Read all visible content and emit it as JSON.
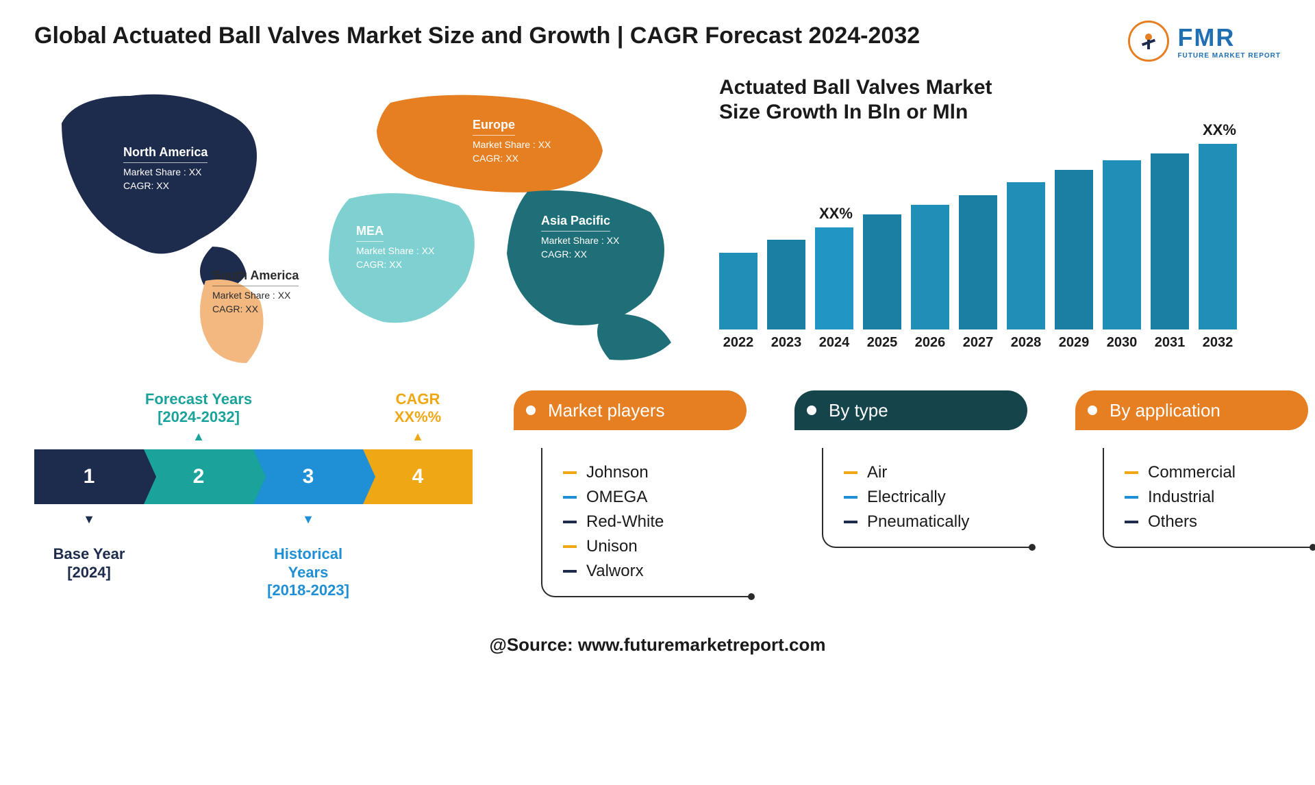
{
  "title": "Global Actuated Ball Valves Market Size and Growth | CAGR Forecast 2024-2032",
  "logo": {
    "fmr": "FMR",
    "sub": "FUTURE MARKET REPORT"
  },
  "map": {
    "regions": [
      {
        "key": "na",
        "name": "North America",
        "share": "Market Share : XX",
        "cagr": "CAGR: XX",
        "color": "#1d2b4c"
      },
      {
        "key": "sa",
        "name": "South America",
        "share": "Market Share : XX",
        "cagr": "CAGR: XX",
        "color": "#f2b880"
      },
      {
        "key": "eu",
        "name": "Europe",
        "share": "Market Share : XX",
        "cagr": "CAGR: XX",
        "color": "#e67e22"
      },
      {
        "key": "mea",
        "name": "MEA",
        "share": "Market Share : XX",
        "cagr": "CAGR: XX",
        "color": "#7fd1d1"
      },
      {
        "key": "apac",
        "name": "Asia Pacific",
        "share": "Market Share : XX",
        "cagr": "CAGR: XX",
        "color": "#1f6f78"
      }
    ]
  },
  "chart": {
    "title": "Actuated Ball Valves Market Size Growth In Bln or Mln",
    "type": "bar",
    "years": [
      "2022",
      "2023",
      "2024",
      "2025",
      "2026",
      "2027",
      "2028",
      "2029",
      "2030",
      "2031",
      "2032"
    ],
    "values": [
      120,
      140,
      160,
      180,
      195,
      210,
      230,
      250,
      265,
      275,
      290
    ],
    "ymax": 300,
    "bar_colors": [
      "#1f8fb7",
      "#1a7fa3",
      "#2196c4",
      "#1a7fa3",
      "#1f8fb7",
      "#1a7fa3",
      "#1f8fb7",
      "#1a7fa3",
      "#1f8fb7",
      "#1a7fa3",
      "#1f8fb7"
    ],
    "pct_labels": [
      {
        "text": "XX%",
        "at_year": "2024"
      },
      {
        "text": "XX%",
        "at_year": "2032"
      }
    ],
    "label_fontsize": 20
  },
  "timeline": {
    "top": [
      {
        "title": "Forecast Years",
        "sub": "[2024-2032]",
        "color": "#1aa39a",
        "seg": 2
      },
      {
        "title": "CAGR",
        "sub": "XX%%",
        "color": "#f0a714",
        "seg": 4
      }
    ],
    "segments": [
      {
        "n": "1",
        "bg": "#1d2b4c"
      },
      {
        "n": "2",
        "bg": "#1aa39a"
      },
      {
        "n": "3",
        "bg": "#1f8fd6"
      },
      {
        "n": "4",
        "bg": "#f0a714"
      }
    ],
    "bottom": [
      {
        "title": "Base Year",
        "sub": "[2024]",
        "color": "#1d2b4c",
        "seg": 1
      },
      {
        "title": "Historical Years",
        "sub": "[2018-2023]",
        "color": "#1f8fd6",
        "seg": 3
      }
    ]
  },
  "pills": {
    "market_players": {
      "label": "Market players",
      "bg": "#e67e22",
      "items": [
        {
          "t": "Johnson",
          "c": "#f0a714"
        },
        {
          "t": "OMEGA",
          "c": "#1f8fd6"
        },
        {
          "t": "Red-White",
          "c": "#1d2b4c"
        },
        {
          "t": "Unison",
          "c": "#f0a714"
        },
        {
          "t": "Valworx",
          "c": "#1d2b4c"
        }
      ]
    },
    "by_type": {
      "label": "By type",
      "bg": "#15444a",
      "items": [
        {
          "t": "Air",
          "c": "#f0a714"
        },
        {
          "t": "Electrically",
          "c": "#1f8fd6"
        },
        {
          "t": "Pneumatically",
          "c": "#1d2b4c"
        }
      ]
    },
    "by_application": {
      "label": "By application",
      "bg": "#e67e22",
      "items": [
        {
          "t": "Commercial",
          "c": "#f0a714"
        },
        {
          "t": "Industrial",
          "c": "#1f8fd6"
        },
        {
          "t": "Others",
          "c": "#1d2b4c"
        }
      ]
    }
  },
  "source": "@Source: www.futuremarketreport.com"
}
